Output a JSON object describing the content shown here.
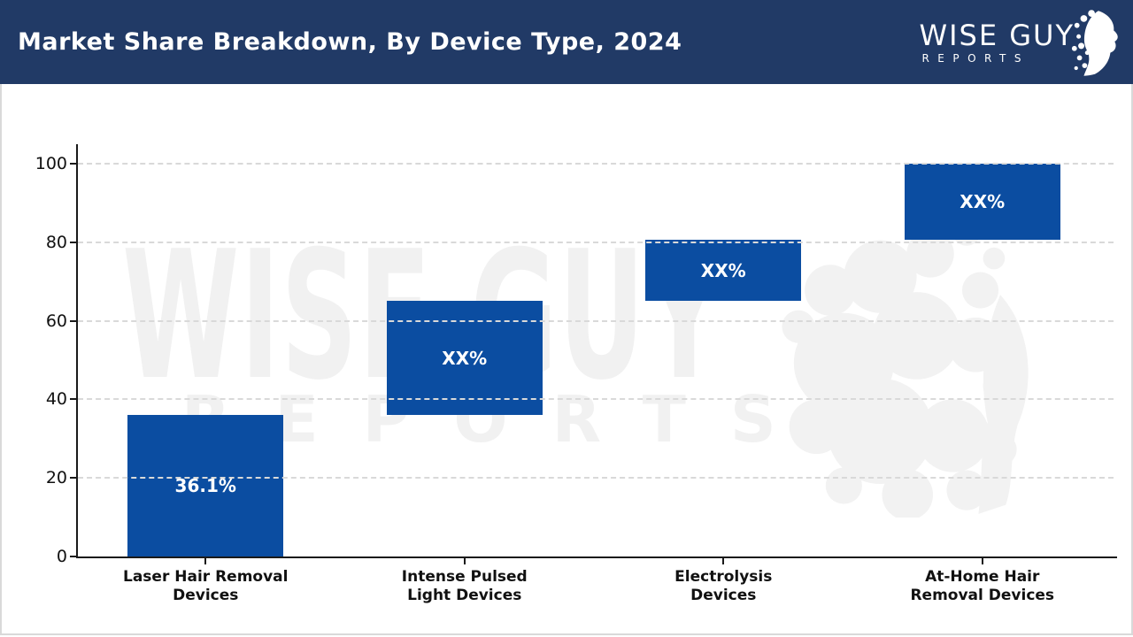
{
  "header": {
    "title": "Market Share Breakdown, By Device Type, 2024",
    "bg_color": "#213a66",
    "logo": {
      "line1": "WISE GUY",
      "line2": "REPORTS",
      "head_icon": "dotted-head-profile"
    }
  },
  "watermark": {
    "line1": "WISE GUY",
    "line2": "REPORTS",
    "head_icon": "dotted-head-profile",
    "color": "#f1f1f1"
  },
  "colors": {
    "bar": "#0b4da1",
    "bar_label": "#ffffff",
    "grid": "#d9d9d9",
    "axis": "#1a1a1a",
    "tick_label": "#111111",
    "header_bg": "#213a66"
  },
  "chart_data": {
    "type": "bar",
    "subtype": "waterfall",
    "title": "Market Share Breakdown, By Device Type, 2024",
    "categories": [
      [
        "Laser Hair Removal",
        "Devices"
      ],
      [
        "Intense Pulsed",
        "Light Devices"
      ],
      [
        "Electrolysis",
        "Devices"
      ],
      [
        "At-Home Hair",
        "Removal Devices"
      ]
    ],
    "segments": [
      {
        "label": "36.1%",
        "start": 0,
        "end": 36.1
      },
      {
        "label": "XX%",
        "start": 36.1,
        "end": 65
      },
      {
        "label": "XX%",
        "start": 65,
        "end": 80.7
      },
      {
        "label": "XX%",
        "start": 80.7,
        "end": 100
      }
    ],
    "xlabel": "",
    "ylabel": "",
    "ylim": [
      0,
      100
    ],
    "yticks": [
      0,
      20,
      40,
      60,
      80,
      100
    ],
    "grid": "horizontal-dashed",
    "legend": "none"
  }
}
